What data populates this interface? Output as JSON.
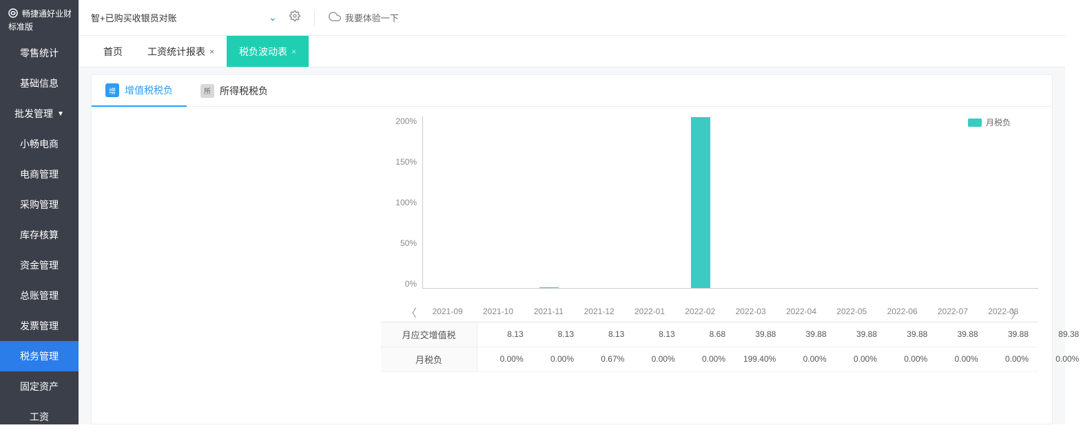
{
  "brand": {
    "name": "畅捷通好业财",
    "edition": "标准版"
  },
  "sidebar": {
    "items": [
      {
        "label": "零售统计"
      },
      {
        "label": "基础信息"
      },
      {
        "label": "批发管理",
        "has_submenu": true
      },
      {
        "label": "小畅电商"
      },
      {
        "label": "电商管理"
      },
      {
        "label": "采购管理"
      },
      {
        "label": "库存核算"
      },
      {
        "label": "资金管理"
      },
      {
        "label": "总账管理"
      },
      {
        "label": "发票管理"
      },
      {
        "label": "税务管理",
        "active": true
      },
      {
        "label": "固定资产"
      },
      {
        "label": "工资"
      }
    ]
  },
  "topbar": {
    "selector_text": "智+已购买收银员对账",
    "explore_text": "我要体验一下"
  },
  "tabs": [
    {
      "label": "首页",
      "closable": false
    },
    {
      "label": "工资统计报表",
      "closable": true
    },
    {
      "label": "税负波动表",
      "closable": true,
      "active": true
    }
  ],
  "subtabs": [
    {
      "label": "增值税税负",
      "icon": "增",
      "active": true
    },
    {
      "label": "所得税税负",
      "icon": "所"
    }
  ],
  "chart": {
    "legend_label": "月税负",
    "legend_color": "#3bcbc2",
    "bar_color": "#3bcbc2",
    "y_ticks": [
      "200%",
      "150%",
      "100%",
      "50%",
      "0%"
    ],
    "y_max": 200,
    "x_labels": [
      "2021-09",
      "2021-10",
      "2021-11",
      "2021-12",
      "2022-01",
      "2022-02",
      "2022-03",
      "2022-04",
      "2022-05",
      "2022-06",
      "2022-07",
      "2022-08"
    ],
    "series_values_pct": [
      0,
      0,
      0.67,
      0,
      0,
      199.4,
      0,
      0,
      0,
      0,
      0,
      0
    ],
    "plot_background": "#ffffff",
    "axis_color": "#cccccc"
  },
  "table": {
    "rows": [
      {
        "header": "月应交增值税",
        "cells": [
          "8.13",
          "8.13",
          "8.13",
          "8.13",
          "8.68",
          "39.88",
          "39.88",
          "39.88",
          "39.88",
          "39.88",
          "39.88",
          "89.38"
        ]
      },
      {
        "header": "月税负",
        "cells": [
          "0.00%",
          "0.00%",
          "0.67%",
          "0.00%",
          "0.00%",
          "199.40%",
          "0.00%",
          "0.00%",
          "0.00%",
          "0.00%",
          "0.00%",
          "0.00%"
        ]
      }
    ]
  }
}
